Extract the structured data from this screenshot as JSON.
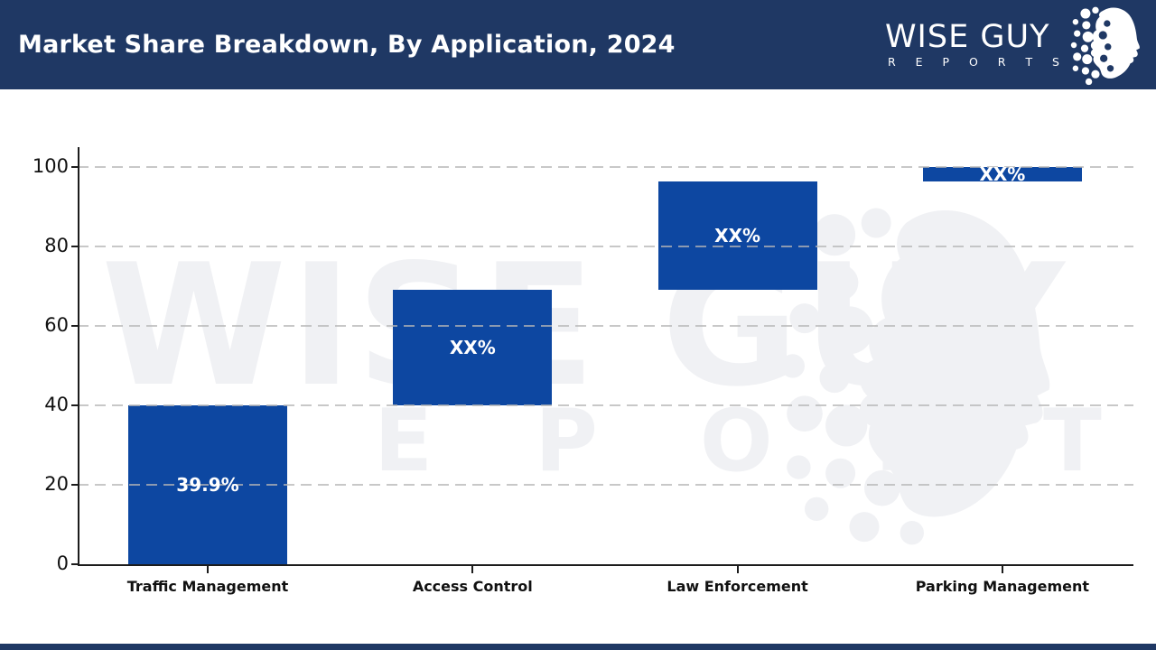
{
  "header": {
    "title": "Market Share Breakdown, By Application, 2024",
    "logo": {
      "line1": "WISE GUY",
      "line2": "R E P O R T S"
    }
  },
  "watermark": {
    "line1": "WISE GUY",
    "line2": "R E P O R T S"
  },
  "colors": {
    "header_bg": "#1f3864",
    "bar": "#0d47a1",
    "grid": "#b6b6b6",
    "watermark": "#f0f1f4",
    "bar_label": "#ffffff",
    "axis": "#1c1c1c"
  },
  "chart_data": {
    "type": "bar",
    "subtype": "waterfall",
    "title": "Market Share Breakdown, By Application, 2024",
    "categories": [
      "Traffic Management",
      "Access Control",
      "Law Enforcement",
      "Parking Management"
    ],
    "segments": [
      {
        "category": "Traffic Management",
        "start": 0,
        "end": 39.9,
        "label": "39.9%"
      },
      {
        "category": "Access Control",
        "start": 39.9,
        "end": 69.0,
        "label": "XX%"
      },
      {
        "category": "Law Enforcement",
        "start": 69.0,
        "end": 96.4,
        "label": "XX%"
      },
      {
        "category": "Parking Management",
        "start": 96.4,
        "end": 100,
        "label": "XX%"
      }
    ],
    "yticks": [
      0,
      20,
      40,
      60,
      80,
      100
    ],
    "ylim": [
      0,
      105
    ],
    "xlabel": "",
    "ylabel": "",
    "grid": "horizontal-dashed",
    "legend": "none"
  }
}
